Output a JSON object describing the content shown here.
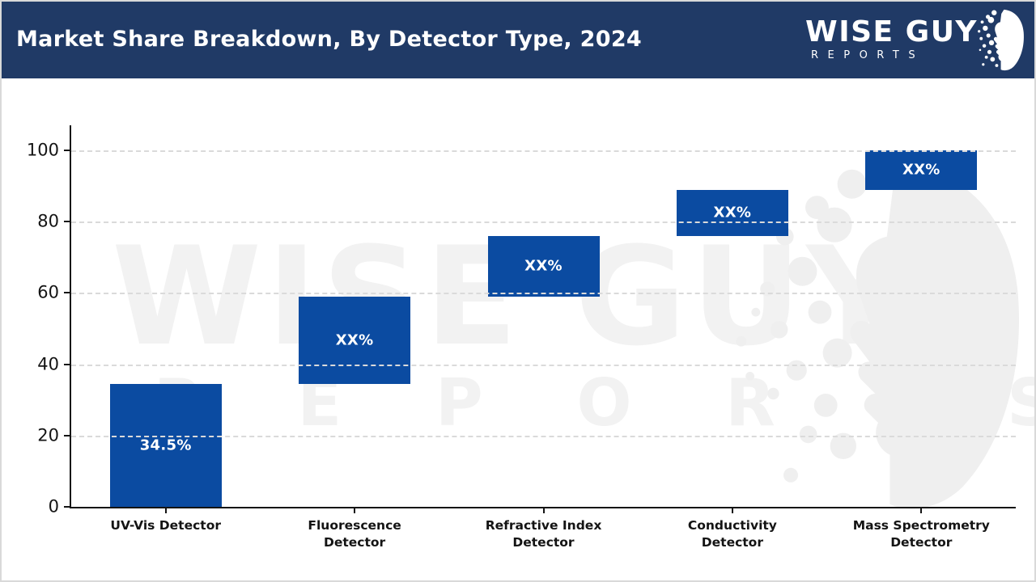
{
  "header": {
    "title": "Market Share Breakdown, By Detector Type, 2024",
    "logo": {
      "line1": "WISE GUY",
      "line2": "REPORTS"
    }
  },
  "watermark": {
    "line1": "WISE GUY",
    "line2": "R E P O R T S"
  },
  "colors": {
    "header_bg": "#203a66",
    "bar_blue": "#0b4ba1",
    "gridline": "#dadada",
    "axis": "#141414",
    "bar_label": "#ffffff"
  },
  "chart_data": {
    "type": "bar",
    "subtype": "waterfall",
    "title": "Market Share Breakdown, By Detector Type, 2024",
    "categories": [
      "UV-Vis Detector",
      "Fluorescence Detector",
      "Refractive Index Detector",
      "Conductivity Detector",
      "Mass Spectrometry Detector"
    ],
    "segments": [
      {
        "category_lines": [
          "UV-Vis Detector"
        ],
        "start": 0,
        "end": 34.5,
        "label": "34.5%"
      },
      {
        "category_lines": [
          "Fluorescence",
          "Detector"
        ],
        "start": 34.5,
        "end": 59,
        "label": "XX%"
      },
      {
        "category_lines": [
          "Refractive Index",
          "Detector"
        ],
        "start": 59,
        "end": 76,
        "label": "XX%"
      },
      {
        "category_lines": [
          "Conductivity",
          "Detector"
        ],
        "start": 76,
        "end": 89,
        "label": "XX%"
      },
      {
        "category_lines": [
          "Mass Spectrometry",
          "Detector"
        ],
        "start": 89,
        "end": 100,
        "label": "XX%"
      }
    ],
    "yticks": [
      0,
      20,
      40,
      60,
      80,
      100
    ],
    "ylim": [
      0,
      100
    ],
    "xlabel": "",
    "ylabel": "",
    "grid": "horizontal-dashed",
    "legend": "none",
    "bar_color": "#0b4ba1",
    "label_color": "#ffffff"
  }
}
